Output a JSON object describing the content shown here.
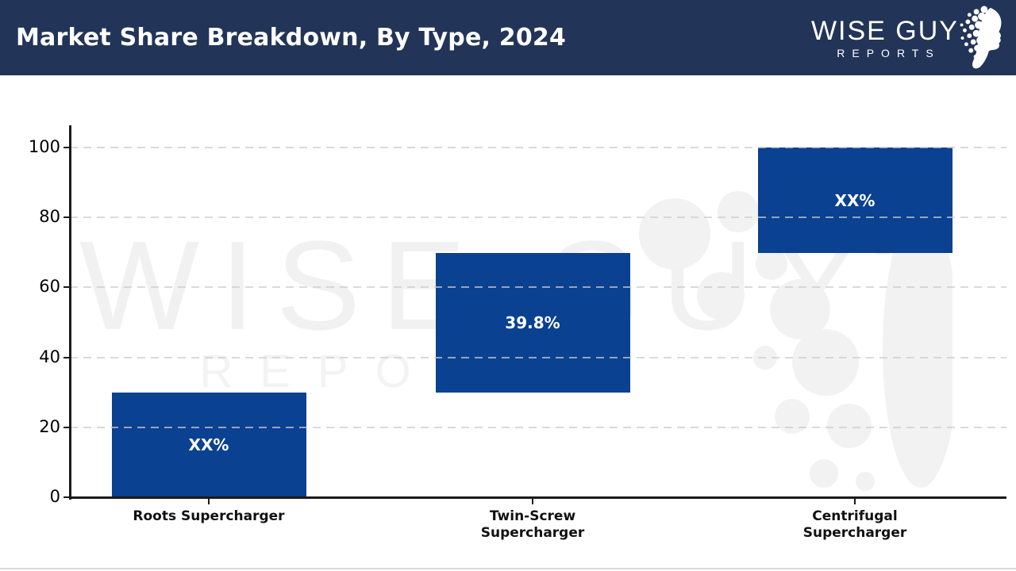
{
  "header": {
    "title": "Market Share Breakdown, By Type, 2024",
    "logo_line1": "WISE GUY",
    "logo_line2": "REPORTS",
    "bg_color": "#223457"
  },
  "watermark": {
    "line1": "WISE GUY",
    "line2": "REPORTS"
  },
  "chart_data": {
    "type": "bar",
    "subtype": "floating_stacked_segments",
    "title": "Market Share Breakdown, By Type, 2024",
    "categories": [
      "Roots Supercharger",
      "Twin-Screw\nSupercharger",
      "Centrifugal\nSupercharger"
    ],
    "bars": [
      {
        "category": "Roots Supercharger",
        "start": 0,
        "end": 30,
        "label": "XX%"
      },
      {
        "category": "Twin-Screw Supercharger",
        "start": 30,
        "end": 69.8,
        "label": "39.8%"
      },
      {
        "category": "Centrifugal Supercharger",
        "start": 69.8,
        "end": 100,
        "label": "XX%"
      }
    ],
    "xlabel": "",
    "ylabel": "",
    "yticks": [
      0,
      20,
      40,
      60,
      80,
      100
    ],
    "ylim": [
      0,
      105
    ],
    "grid": "horizontal-dashed",
    "legend": "none",
    "bar_color": "#0a4191",
    "bar_label_color": "#ffffff",
    "grid_color": "#cccccc",
    "axis_color": "#1a1a1a"
  }
}
